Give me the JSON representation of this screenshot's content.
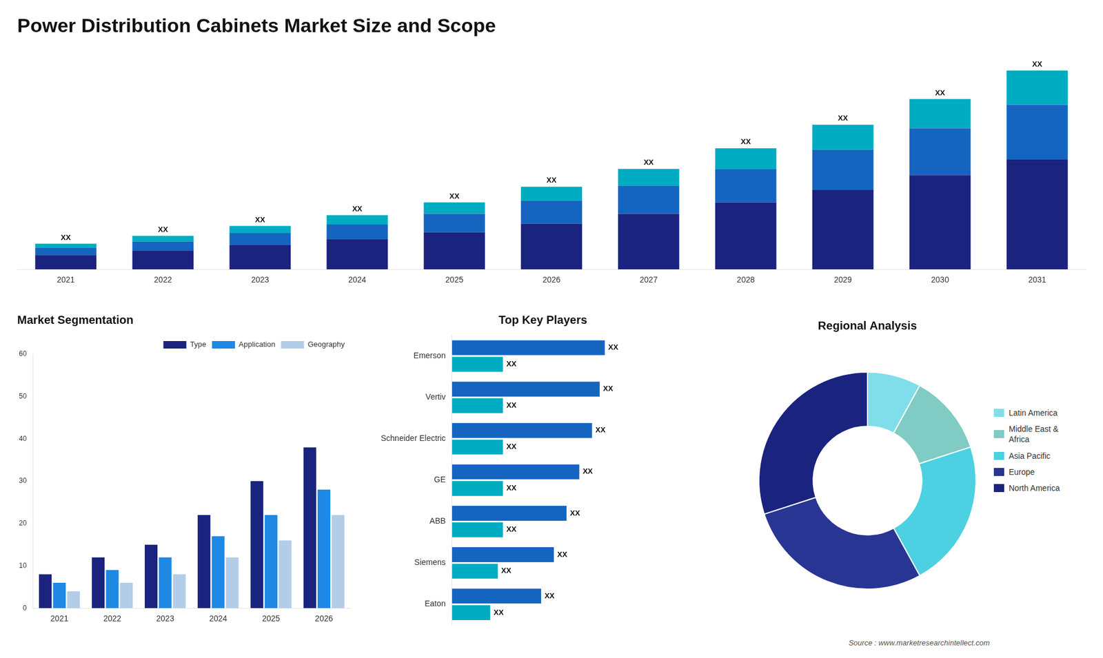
{
  "chart_data": [
    {
      "type": "bar",
      "title": "Power Distribution Cabinets Market Size and Scope",
      "categories": [
        "2021",
        "2022",
        "2023",
        "2024",
        "2025",
        "2026",
        "2027",
        "2028",
        "2029",
        "2030",
        "2031"
      ],
      "series": [
        {
          "color": "#1a237e",
          "values": [
            1.0,
            1.3,
            1.7,
            2.1,
            2.6,
            3.2,
            3.9,
            4.7,
            5.6,
            6.6,
            7.7
          ]
        },
        {
          "color": "#1565c0",
          "values": [
            0.5,
            0.65,
            0.85,
            1.05,
            1.3,
            1.6,
            1.95,
            2.35,
            2.8,
            3.3,
            3.85
          ]
        },
        {
          "color": "#00acc1",
          "values": [
            0.3,
            0.4,
            0.5,
            0.65,
            0.8,
            1.0,
            1.2,
            1.45,
            1.75,
            2.05,
            2.4
          ]
        }
      ],
      "stacked": true,
      "ylim": [
        0,
        15
      ],
      "tick_labels": "x",
      "grid": false,
      "annotations": [
        "XX",
        "XX",
        "XX",
        "XX",
        "XX",
        "XX",
        "XX",
        "XX",
        "XX",
        "XX",
        "XX"
      ]
    },
    {
      "type": "bar",
      "title": "Market Segmentation",
      "categories": [
        "2021",
        "2022",
        "2023",
        "2024",
        "2025",
        "2026"
      ],
      "series": [
        {
          "name": "Type",
          "color": "#1a237e",
          "values": [
            8,
            12,
            15,
            22,
            30,
            38
          ]
        },
        {
          "name": "Application",
          "color": "#1e88e5",
          "values": [
            6,
            9,
            12,
            17,
            22,
            28
          ]
        },
        {
          "name": "Geography",
          "color": "#b3cde8",
          "values": [
            4,
            6,
            8,
            12,
            16,
            22
          ]
        }
      ],
      "ylim": [
        0,
        60
      ],
      "yticks": [
        0,
        10,
        20,
        30,
        40,
        50,
        60
      ],
      "grid": false,
      "legend": "top"
    },
    {
      "type": "bar",
      "title": "Top Key Players",
      "orientation": "horizontal",
      "categories": [
        "Emerson",
        "Vertiv",
        "Schneider Electric",
        "GE",
        "ABB",
        "Siemens",
        "Eaton"
      ],
      "series": [
        {
          "color": "#1565c0",
          "values": [
            6.0,
            5.8,
            5.5,
            5.0,
            4.5,
            4.0,
            3.5
          ]
        },
        {
          "color": "#00acc1",
          "values": [
            2.0,
            2.0,
            2.0,
            2.0,
            2.0,
            1.8,
            1.5
          ]
        }
      ],
      "xlim": [
        0,
        10
      ],
      "tick_labels": "y",
      "grid": false,
      "annotations": [
        [
          "XX",
          "XX",
          "XX",
          "XX",
          "XX",
          "XX",
          "XX"
        ],
        [
          "XX",
          "XX",
          "XX",
          "XX",
          "XX",
          "XX",
          "XX"
        ]
      ]
    },
    {
      "type": "doughnut",
      "title": "Regional Analysis",
      "categories": [
        "Latin America",
        "Middle East &\nAfrica",
        "Asia Pacific",
        "Europe",
        "North America"
      ],
      "values": [
        8,
        12,
        22,
        28,
        30
      ],
      "colors": [
        "#80deea",
        "#80cbc4",
        "#4dd0e1",
        "#283593",
        "#1a237e"
      ],
      "legend": "right",
      "annotations": [
        "Source : www.marketresearchintellect.com"
      ]
    }
  ]
}
